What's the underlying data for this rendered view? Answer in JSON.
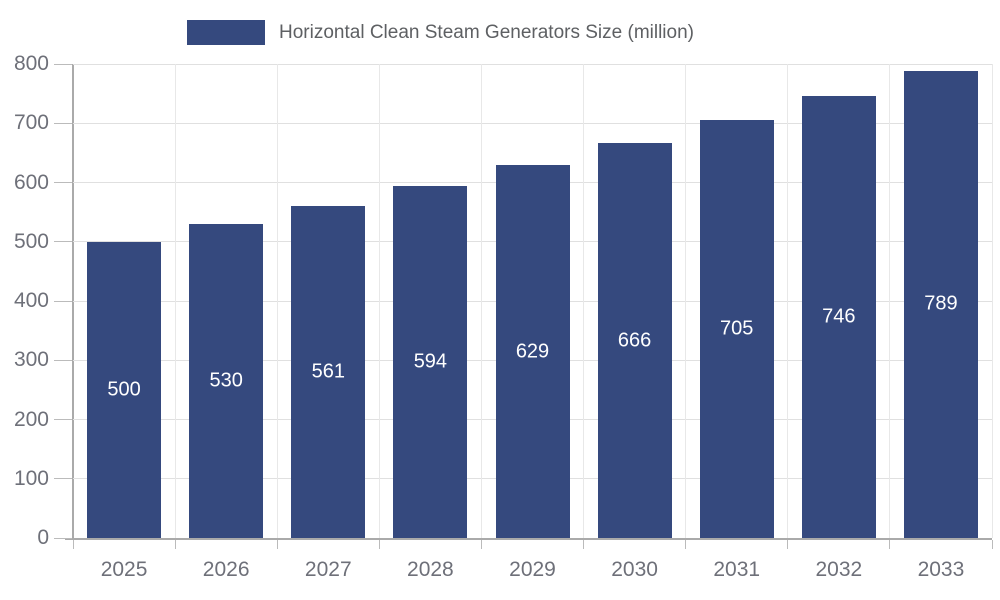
{
  "chart_data": {
    "type": "bar",
    "legend": "Horizontal Clean Steam Generators Size (million)",
    "categories": [
      "2025",
      "2026",
      "2027",
      "2028",
      "2029",
      "2030",
      "2031",
      "2032",
      "2033"
    ],
    "values": [
      500,
      530,
      561,
      594,
      629,
      666,
      705,
      746,
      789
    ],
    "title": "",
    "xlabel": "",
    "ylabel": "",
    "ylim": [
      0,
      800
    ],
    "ytick_step": 100,
    "grid": true,
    "legend_position": "top",
    "bar_color": "#35497e",
    "value_label_color": "#ffffff",
    "axis_text_color": "#6e7079"
  }
}
